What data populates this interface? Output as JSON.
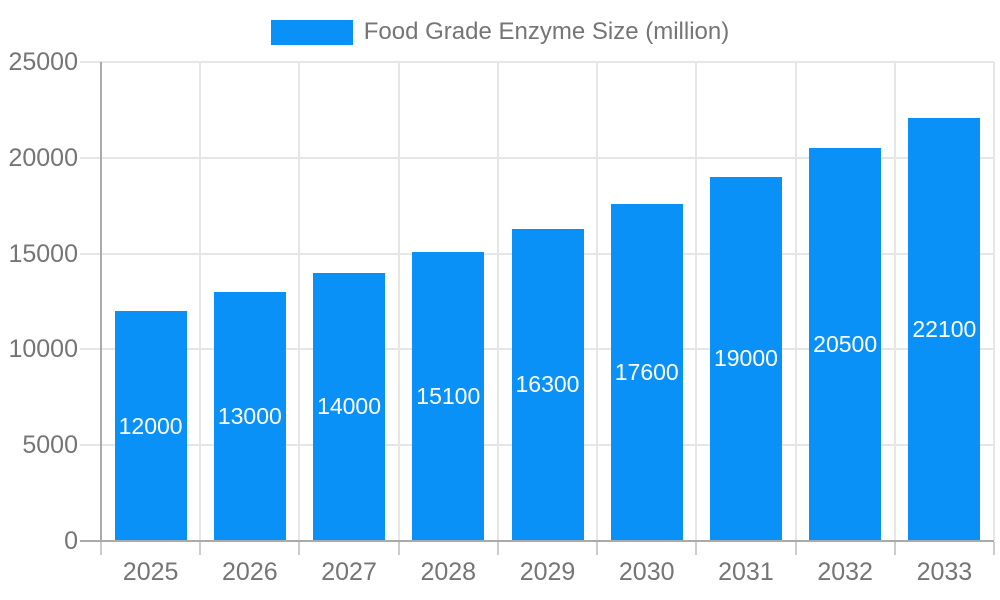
{
  "legend": {
    "label": "Food Grade Enzyme Size (million)"
  },
  "colors": {
    "bar": "#0991f8",
    "axis": "#aaaaaa",
    "gridline": "#e6e6e6",
    "tick": "#cccccc",
    "text": "#757575",
    "bar_label": "#ffffff",
    "background": "#ffffff"
  },
  "chart_data": {
    "type": "bar",
    "title": "Food Grade Enzyme Size (million)",
    "categories": [
      "2025",
      "2026",
      "2027",
      "2028",
      "2029",
      "2030",
      "2031",
      "2032",
      "2033"
    ],
    "series": [
      {
        "name": "Food Grade Enzyme Size (million)",
        "values": [
          12000,
          13000,
          14000,
          15100,
          16300,
          17600,
          19000,
          20500,
          22100
        ]
      }
    ],
    "value_labels": [
      "12000",
      "13000",
      "14000",
      "15100",
      "16300",
      "17600",
      "19000",
      "20500",
      "22100"
    ],
    "xlabel": "",
    "ylabel": "",
    "ylim": [
      0,
      25000
    ],
    "yticks": [
      0,
      5000,
      10000,
      15000,
      20000,
      25000
    ],
    "ytick_labels": [
      "0",
      "5000",
      "10000",
      "15000",
      "20000",
      "25000"
    ],
    "grid": true,
    "legend_position": "top"
  }
}
